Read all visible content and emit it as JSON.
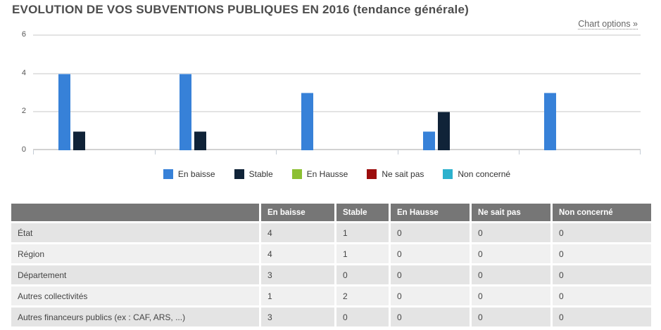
{
  "page": {
    "title": "EVOLUTION DE VOS SUBVENTIONS PUBLIQUES EN 2016 (tendance générale)",
    "chart_options_label": "Chart options »"
  },
  "chart_data": {
    "type": "bar",
    "title": "EVOLUTION DE VOS SUBVENTIONS PUBLIQUES EN 2016 (tendance générale)",
    "categories": [
      "État",
      "Région",
      "Département",
      "Autres collectivités",
      "Autres financeurs publics (ex : CAF, ARS, ...)"
    ],
    "series": [
      {
        "name": "En baisse",
        "color": "#3781d8",
        "values": [
          4,
          4,
          3,
          1,
          3
        ]
      },
      {
        "name": "Stable",
        "color": "#102338",
        "values": [
          1,
          1,
          0,
          2,
          0
        ]
      },
      {
        "name": "En Hausse",
        "color": "#8cc032",
        "values": [
          0,
          0,
          0,
          0,
          0
        ]
      },
      {
        "name": "Ne sait pas",
        "color": "#9c0d0d",
        "values": [
          0,
          0,
          0,
          0,
          0
        ]
      },
      {
        "name": "Non concerné",
        "color": "#2cb1cd",
        "values": [
          0,
          0,
          0,
          0,
          0
        ]
      }
    ],
    "xlabel": "",
    "ylabel": "",
    "ylim": [
      0,
      6
    ],
    "yticks": [
      0,
      2,
      4,
      6
    ],
    "grid": true,
    "legend_position": "bottom",
    "x_tick_labels_visible": false
  },
  "table": {
    "headers": [
      "",
      "En baisse",
      "Stable",
      "En Hausse",
      "Ne sait pas",
      "Non concerné"
    ],
    "rows": [
      {
        "label": "État",
        "values": [
          "4",
          "1",
          "0",
          "0",
          "0"
        ]
      },
      {
        "label": "Région",
        "values": [
          "4",
          "1",
          "0",
          "0",
          "0"
        ]
      },
      {
        "label": "Département",
        "values": [
          "3",
          "0",
          "0",
          "0",
          "0"
        ]
      },
      {
        "label": "Autres collectivités",
        "values": [
          "1",
          "2",
          "0",
          "0",
          "0"
        ]
      },
      {
        "label": "Autres financeurs publics (ex : CAF, ARS, ...)",
        "values": [
          "3",
          "0",
          "0",
          "0",
          "0"
        ]
      }
    ]
  }
}
